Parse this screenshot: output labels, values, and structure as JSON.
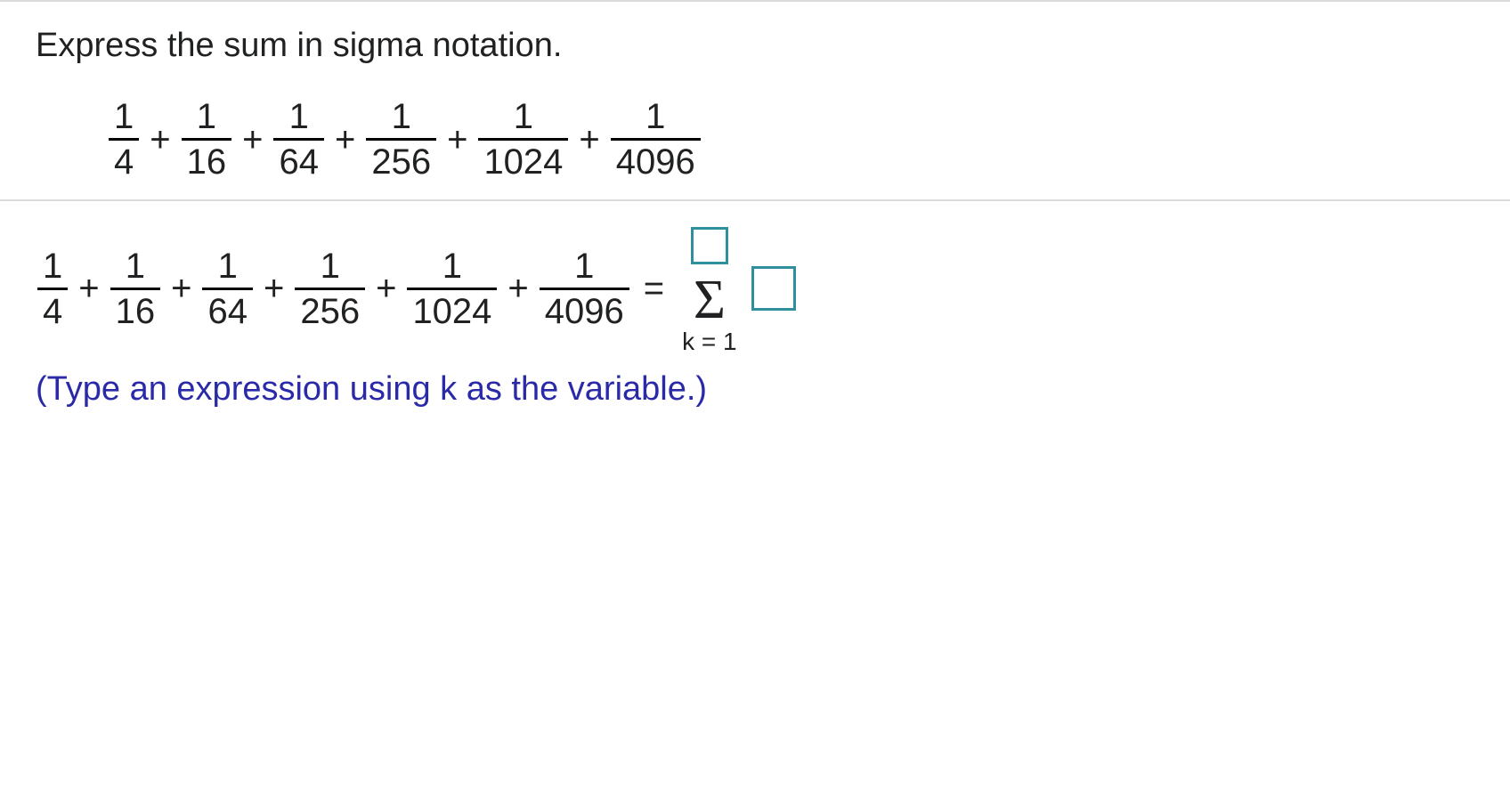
{
  "prompt": "Express the sum in sigma notation.",
  "fractions": [
    {
      "num": "1",
      "den": "4"
    },
    {
      "num": "1",
      "den": "16"
    },
    {
      "num": "1",
      "den": "64"
    },
    {
      "num": "1",
      "den": "256"
    },
    {
      "num": "1",
      "den": "1024"
    },
    {
      "num": "1",
      "den": "4096"
    }
  ],
  "plus": "+",
  "equals": "=",
  "sigma": "Σ",
  "sigma_lower": "k = 1",
  "hint": "(Type an expression using k as the variable.)",
  "colors": {
    "rule": "#d9dbdd",
    "text": "#202122",
    "hint": "#2a2aa8",
    "box_border": "#2f8f9d"
  }
}
